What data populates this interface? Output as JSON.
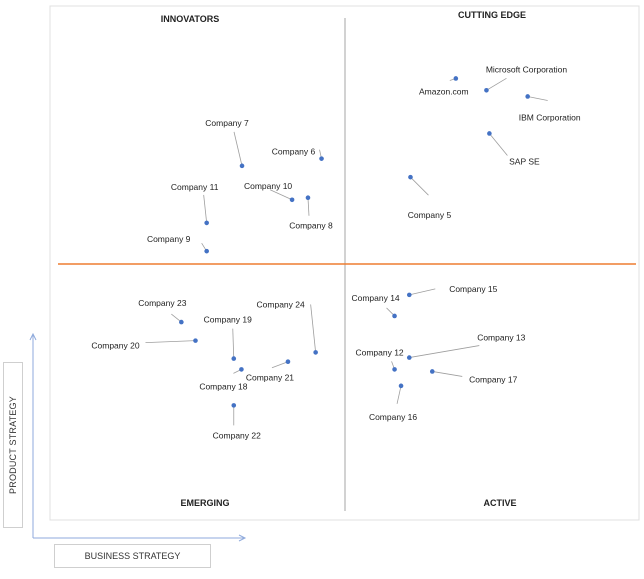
{
  "chart_data": {
    "type": "scatter",
    "quadrants": {
      "top_left": "INNOVATORS",
      "top_right": "CUTTING EDGE",
      "bottom_left": "EMERGING",
      "bottom_right": "ACTIVE"
    },
    "xlabel": "BUSINESS STRATEGY",
    "ylabel": "PRODUCT STRATEGY",
    "grid": false,
    "xlim": [
      0,
      100
    ],
    "ylim": [
      0,
      100
    ],
    "colors": {
      "point": "#4472c4",
      "divider_h": "#ed7d31",
      "divider_v": "#a6a6a6",
      "leader": "#9e9e9e"
    },
    "points": [
      {
        "label": "Amazon.com",
        "x": 68.9,
        "y": 85.9
      },
      {
        "label": "Microsoft Corporation",
        "x": 74.1,
        "y": 83.6
      },
      {
        "label": "IBM Corporation",
        "x": 81.1,
        "y": 82.4
      },
      {
        "label": "SAP SE",
        "x": 74.6,
        "y": 75.2
      },
      {
        "label": "Company 5",
        "x": 61.2,
        "y": 66.7
      },
      {
        "label": "Company 6",
        "x": 46.1,
        "y": 70.3
      },
      {
        "label": "Company 7",
        "x": 32.6,
        "y": 68.9
      },
      {
        "label": "Company 8",
        "x": 43.8,
        "y": 62.7
      },
      {
        "label": "Company 9",
        "x": 26.6,
        "y": 52.3
      },
      {
        "label": "Company 10",
        "x": 41.1,
        "y": 62.3
      },
      {
        "label": "Company 11",
        "x": 26.6,
        "y": 57.8
      },
      {
        "label": "Company 12",
        "x": 58.5,
        "y": 29.3
      },
      {
        "label": "Company 13",
        "x": 61.0,
        "y": 31.6
      },
      {
        "label": "Company 14",
        "x": 58.5,
        "y": 39.7
      },
      {
        "label": "Company 15",
        "x": 61.0,
        "y": 43.8
      },
      {
        "label": "Company 16",
        "x": 59.6,
        "y": 26.1
      },
      {
        "label": "Company 17",
        "x": 64.9,
        "y": 28.9
      },
      {
        "label": "Company 18",
        "x": 32.5,
        "y": 29.3
      },
      {
        "label": "Company 19",
        "x": 31.2,
        "y": 31.4
      },
      {
        "label": "Company 20",
        "x": 24.7,
        "y": 34.9
      },
      {
        "label": "Company 21",
        "x": 40.4,
        "y": 30.8
      },
      {
        "label": "Company 22",
        "x": 31.2,
        "y": 22.3
      },
      {
        "label": "Company 23",
        "x": 22.3,
        "y": 38.5
      },
      {
        "label": "Company 24",
        "x": 45.1,
        "y": 32.6
      }
    ]
  }
}
